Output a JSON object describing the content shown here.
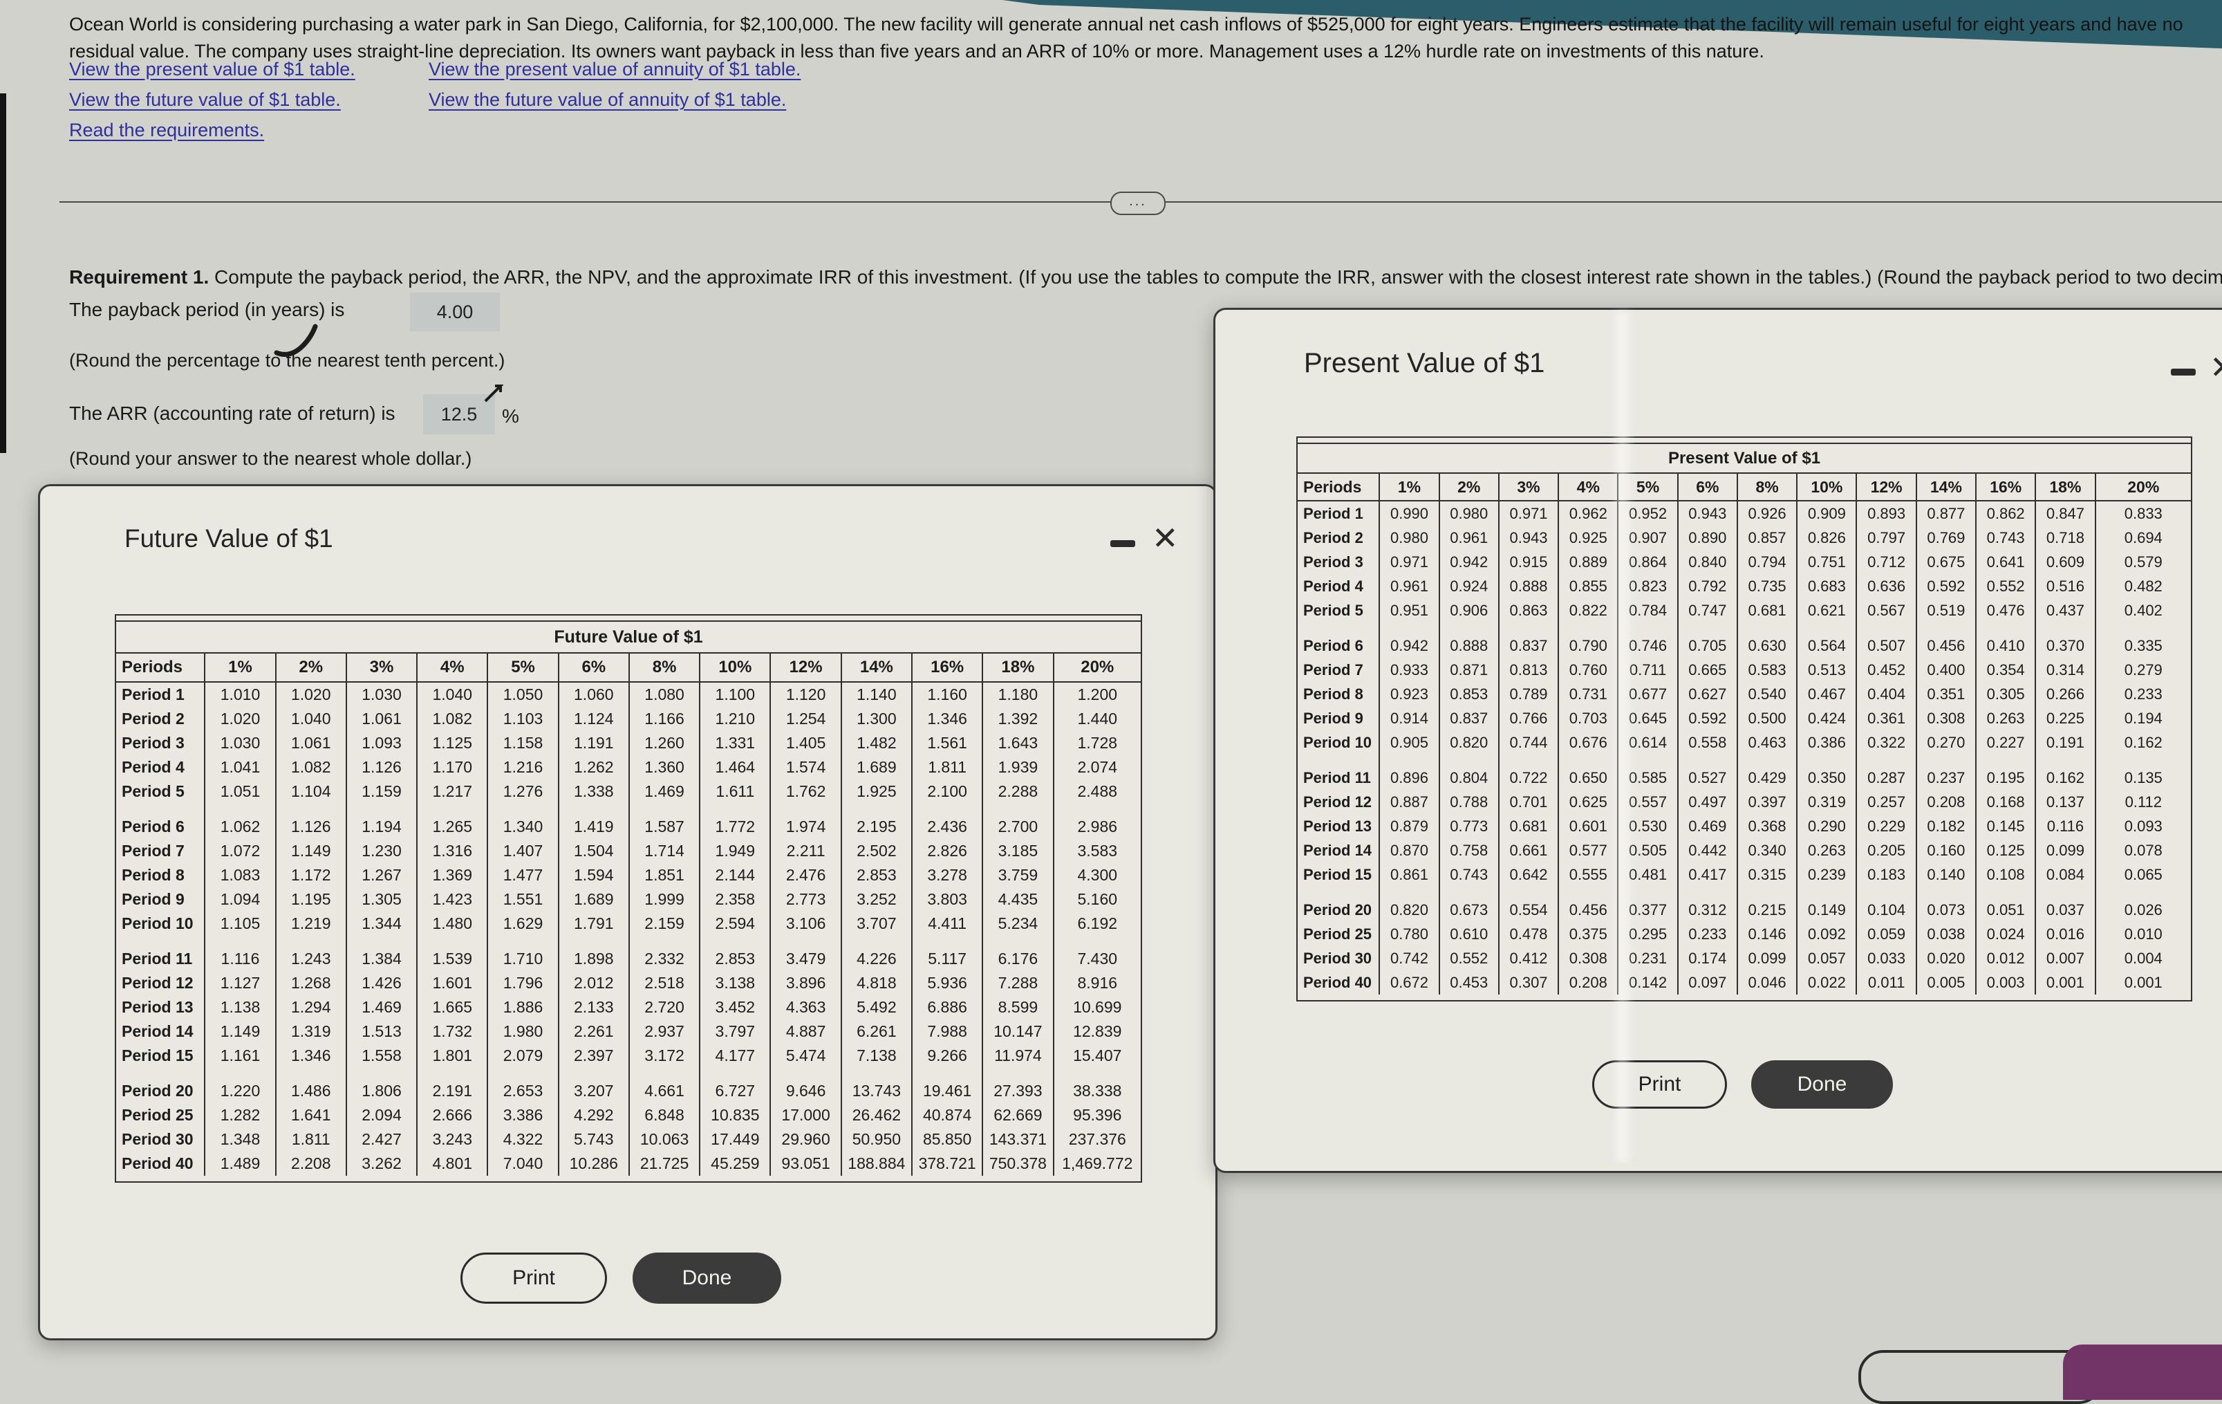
{
  "page": {
    "problem_text_line1": "Ocean World is considering purchasing a water park in San Diego, California, for $2,100,000. The new facility will generate annual net cash inflows of $525,000 for eight years. Engineers estimate that the facility will remain useful for eight years and have no",
    "problem_text_line2": "residual value. The company uses straight-line depreciation. Its owners want payback in less than five years and an ARR of 10% or more. Management uses a 12% hurdle rate on investments of this nature.",
    "links": {
      "pv1": "View the present value of $1 table.",
      "pva": "View the present value of annuity of $1 table.",
      "fv1": "View the future value of $1 table.",
      "fva": "View the future value of annuity of $1 table.",
      "requirements": "Read the requirements."
    },
    "divider_dots": "...",
    "requirement": {
      "bold": "Requirement 1.",
      "rest": " Compute the payback period, the ARR, the NPV, and the approximate IRR of this investment. (If you use the tables to compute the IRR, answer with the closest interest rate shown in the tables.) (Round the payback period to two decimal places."
    },
    "payback": {
      "label": "The payback period (in years) is",
      "value": "4.00"
    },
    "round_pct_note": "(Round the percentage to the nearest tenth percent.)",
    "arr": {
      "label": "The ARR (accounting rate of return) is",
      "value": "12.5",
      "suffix": "%"
    },
    "round_dollar_note": "(Round your answer to the nearest whole dollar.)"
  },
  "colors": {
    "link": "#2f2f9f",
    "input_highlight": "#c4c8c6",
    "done_button": "#3b3b3b",
    "photo_teal": "#2b5d6b",
    "cutoff_purple": "#723366"
  },
  "fv_dialog": {
    "title": "Future Value of $1",
    "icons": {
      "minimize": "minimize-dash",
      "close": "✕"
    },
    "print_label": "Print",
    "done_label": "Done",
    "table": {
      "caption": "Future Value of $1",
      "headers": [
        "Periods",
        "1%",
        "2%",
        "3%",
        "4%",
        "5%",
        "6%",
        "8%",
        "10%",
        "12%",
        "14%",
        "16%",
        "18%",
        "20%"
      ],
      "groups": [
        [
          {
            "label": "Period 1",
            "values": [
              "1.010",
              "1.020",
              "1.030",
              "1.040",
              "1.050",
              "1.060",
              "1.080",
              "1.100",
              "1.120",
              "1.140",
              "1.160",
              "1.180",
              "1.200"
            ]
          },
          {
            "label": "Period 2",
            "values": [
              "1.020",
              "1.040",
              "1.061",
              "1.082",
              "1.103",
              "1.124",
              "1.166",
              "1.210",
              "1.254",
              "1.300",
              "1.346",
              "1.392",
              "1.440"
            ]
          },
          {
            "label": "Period 3",
            "values": [
              "1.030",
              "1.061",
              "1.093",
              "1.125",
              "1.158",
              "1.191",
              "1.260",
              "1.331",
              "1.405",
              "1.482",
              "1.561",
              "1.643",
              "1.728"
            ]
          },
          {
            "label": "Period 4",
            "values": [
              "1.041",
              "1.082",
              "1.126",
              "1.170",
              "1.216",
              "1.262",
              "1.360",
              "1.464",
              "1.574",
              "1.689",
              "1.811",
              "1.939",
              "2.074"
            ]
          },
          {
            "label": "Period 5",
            "values": [
              "1.051",
              "1.104",
              "1.159",
              "1.217",
              "1.276",
              "1.338",
              "1.469",
              "1.611",
              "1.762",
              "1.925",
              "2.100",
              "2.288",
              "2.488"
            ]
          }
        ],
        [
          {
            "label": "Period 6",
            "values": [
              "1.062",
              "1.126",
              "1.194",
              "1.265",
              "1.340",
              "1.419",
              "1.587",
              "1.772",
              "1.974",
              "2.195",
              "2.436",
              "2.700",
              "2.986"
            ]
          },
          {
            "label": "Period 7",
            "values": [
              "1.072",
              "1.149",
              "1.230",
              "1.316",
              "1.407",
              "1.504",
              "1.714",
              "1.949",
              "2.211",
              "2.502",
              "2.826",
              "3.185",
              "3.583"
            ]
          },
          {
            "label": "Period 8",
            "values": [
              "1.083",
              "1.172",
              "1.267",
              "1.369",
              "1.477",
              "1.594",
              "1.851",
              "2.144",
              "2.476",
              "2.853",
              "3.278",
              "3.759",
              "4.300"
            ]
          },
          {
            "label": "Period 9",
            "values": [
              "1.094",
              "1.195",
              "1.305",
              "1.423",
              "1.551",
              "1.689",
              "1.999",
              "2.358",
              "2.773",
              "3.252",
              "3.803",
              "4.435",
              "5.160"
            ]
          },
          {
            "label": "Period 10",
            "values": [
              "1.105",
              "1.219",
              "1.344",
              "1.480",
              "1.629",
              "1.791",
              "2.159",
              "2.594",
              "3.106",
              "3.707",
              "4.411",
              "5.234",
              "6.192"
            ]
          }
        ],
        [
          {
            "label": "Period 11",
            "values": [
              "1.116",
              "1.243",
              "1.384",
              "1.539",
              "1.710",
              "1.898",
              "2.332",
              "2.853",
              "3.479",
              "4.226",
              "5.117",
              "6.176",
              "7.430"
            ]
          },
          {
            "label": "Period 12",
            "values": [
              "1.127",
              "1.268",
              "1.426",
              "1.601",
              "1.796",
              "2.012",
              "2.518",
              "3.138",
              "3.896",
              "4.818",
              "5.936",
              "7.288",
              "8.916"
            ]
          },
          {
            "label": "Period 13",
            "values": [
              "1.138",
              "1.294",
              "1.469",
              "1.665",
              "1.886",
              "2.133",
              "2.720",
              "3.452",
              "4.363",
              "5.492",
              "6.886",
              "8.599",
              "10.699"
            ]
          },
          {
            "label": "Period 14",
            "values": [
              "1.149",
              "1.319",
              "1.513",
              "1.732",
              "1.980",
              "2.261",
              "2.937",
              "3.797",
              "4.887",
              "6.261",
              "7.988",
              "10.147",
              "12.839"
            ]
          },
          {
            "label": "Period 15",
            "values": [
              "1.161",
              "1.346",
              "1.558",
              "1.801",
              "2.079",
              "2.397",
              "3.172",
              "4.177",
              "5.474",
              "7.138",
              "9.266",
              "11.974",
              "15.407"
            ]
          }
        ],
        [
          {
            "label": "Period 20",
            "values": [
              "1.220",
              "1.486",
              "1.806",
              "2.191",
              "2.653",
              "3.207",
              "4.661",
              "6.727",
              "9.646",
              "13.743",
              "19.461",
              "27.393",
              "38.338"
            ]
          },
          {
            "label": "Period 25",
            "values": [
              "1.282",
              "1.641",
              "2.094",
              "2.666",
              "3.386",
              "4.292",
              "6.848",
              "10.835",
              "17.000",
              "26.462",
              "40.874",
              "62.669",
              "95.396"
            ]
          },
          {
            "label": "Period 30",
            "values": [
              "1.348",
              "1.811",
              "2.427",
              "3.243",
              "4.322",
              "5.743",
              "10.063",
              "17.449",
              "29.960",
              "50.950",
              "85.850",
              "143.371",
              "237.376"
            ]
          },
          {
            "label": "Period 40",
            "values": [
              "1.489",
              "2.208",
              "3.262",
              "4.801",
              "7.040",
              "10.286",
              "21.725",
              "45.259",
              "93.051",
              "188.884",
              "378.721",
              "750.378",
              "1,469.772"
            ]
          }
        ]
      ]
    }
  },
  "pv_dialog": {
    "title": "Present Value of $1",
    "icons": {
      "minimize": "minimize-dash",
      "close": "✕"
    },
    "print_label": "Print",
    "done_label": "Done",
    "table": {
      "caption": "Present Value of $1",
      "headers": [
        "Periods",
        "1%",
        "2%",
        "3%",
        "4%",
        "5%",
        "6%",
        "8%",
        "10%",
        "12%",
        "14%",
        "16%",
        "18%",
        "20%"
      ],
      "groups": [
        [
          {
            "label": "Period 1",
            "values": [
              "0.990",
              "0.980",
              "0.971",
              "0.962",
              "0.952",
              "0.943",
              "0.926",
              "0.909",
              "0.893",
              "0.877",
              "0.862",
              "0.847",
              "0.833"
            ]
          },
          {
            "label": "Period 2",
            "values": [
              "0.980",
              "0.961",
              "0.943",
              "0.925",
              "0.907",
              "0.890",
              "0.857",
              "0.826",
              "0.797",
              "0.769",
              "0.743",
              "0.718",
              "0.694"
            ]
          },
          {
            "label": "Period 3",
            "values": [
              "0.971",
              "0.942",
              "0.915",
              "0.889",
              "0.864",
              "0.840",
              "0.794",
              "0.751",
              "0.712",
              "0.675",
              "0.641",
              "0.609",
              "0.579"
            ]
          },
          {
            "label": "Period 4",
            "values": [
              "0.961",
              "0.924",
              "0.888",
              "0.855",
              "0.823",
              "0.792",
              "0.735",
              "0.683",
              "0.636",
              "0.592",
              "0.552",
              "0.516",
              "0.482"
            ]
          },
          {
            "label": "Period 5",
            "values": [
              "0.951",
              "0.906",
              "0.863",
              "0.822",
              "0.784",
              "0.747",
              "0.681",
              "0.621",
              "0.567",
              "0.519",
              "0.476",
              "0.437",
              "0.402"
            ]
          }
        ],
        [
          {
            "label": "Period 6",
            "values": [
              "0.942",
              "0.888",
              "0.837",
              "0.790",
              "0.746",
              "0.705",
              "0.630",
              "0.564",
              "0.507",
              "0.456",
              "0.410",
              "0.370",
              "0.335"
            ]
          },
          {
            "label": "Period 7",
            "values": [
              "0.933",
              "0.871",
              "0.813",
              "0.760",
              "0.711",
              "0.665",
              "0.583",
              "0.513",
              "0.452",
              "0.400",
              "0.354",
              "0.314",
              "0.279"
            ]
          },
          {
            "label": "Period 8",
            "values": [
              "0.923",
              "0.853",
              "0.789",
              "0.731",
              "0.677",
              "0.627",
              "0.540",
              "0.467",
              "0.404",
              "0.351",
              "0.305",
              "0.266",
              "0.233"
            ]
          },
          {
            "label": "Period 9",
            "values": [
              "0.914",
              "0.837",
              "0.766",
              "0.703",
              "0.645",
              "0.592",
              "0.500",
              "0.424",
              "0.361",
              "0.308",
              "0.263",
              "0.225",
              "0.194"
            ]
          },
          {
            "label": "Period 10",
            "values": [
              "0.905",
              "0.820",
              "0.744",
              "0.676",
              "0.614",
              "0.558",
              "0.463",
              "0.386",
              "0.322",
              "0.270",
              "0.227",
              "0.191",
              "0.162"
            ]
          }
        ],
        [
          {
            "label": "Period 11",
            "values": [
              "0.896",
              "0.804",
              "0.722",
              "0.650",
              "0.585",
              "0.527",
              "0.429",
              "0.350",
              "0.287",
              "0.237",
              "0.195",
              "0.162",
              "0.135"
            ]
          },
          {
            "label": "Period 12",
            "values": [
              "0.887",
              "0.788",
              "0.701",
              "0.625",
              "0.557",
              "0.497",
              "0.397",
              "0.319",
              "0.257",
              "0.208",
              "0.168",
              "0.137",
              "0.112"
            ]
          },
          {
            "label": "Period 13",
            "values": [
              "0.879",
              "0.773",
              "0.681",
              "0.601",
              "0.530",
              "0.469",
              "0.368",
              "0.290",
              "0.229",
              "0.182",
              "0.145",
              "0.116",
              "0.093"
            ]
          },
          {
            "label": "Period 14",
            "values": [
              "0.870",
              "0.758",
              "0.661",
              "0.577",
              "0.505",
              "0.442",
              "0.340",
              "0.263",
              "0.205",
              "0.160",
              "0.125",
              "0.099",
              "0.078"
            ]
          },
          {
            "label": "Period 15",
            "values": [
              "0.861",
              "0.743",
              "0.642",
              "0.555",
              "0.481",
              "0.417",
              "0.315",
              "0.239",
              "0.183",
              "0.140",
              "0.108",
              "0.084",
              "0.065"
            ]
          }
        ],
        [
          {
            "label": "Period 20",
            "values": [
              "0.820",
              "0.673",
              "0.554",
              "0.456",
              "0.377",
              "0.312",
              "0.215",
              "0.149",
              "0.104",
              "0.073",
              "0.051",
              "0.037",
              "0.026"
            ]
          },
          {
            "label": "Period 25",
            "values": [
              "0.780",
              "0.610",
              "0.478",
              "0.375",
              "0.295",
              "0.233",
              "0.146",
              "0.092",
              "0.059",
              "0.038",
              "0.024",
              "0.016",
              "0.010"
            ]
          },
          {
            "label": "Period 30",
            "values": [
              "0.742",
              "0.552",
              "0.412",
              "0.308",
              "0.231",
              "0.174",
              "0.099",
              "0.057",
              "0.033",
              "0.020",
              "0.012",
              "0.007",
              "0.004"
            ]
          },
          {
            "label": "Period 40",
            "values": [
              "0.672",
              "0.453",
              "0.307",
              "0.208",
              "0.142",
              "0.097",
              "0.046",
              "0.022",
              "0.011",
              "0.005",
              "0.003",
              "0.001",
              "0.001"
            ]
          }
        ]
      ]
    }
  }
}
